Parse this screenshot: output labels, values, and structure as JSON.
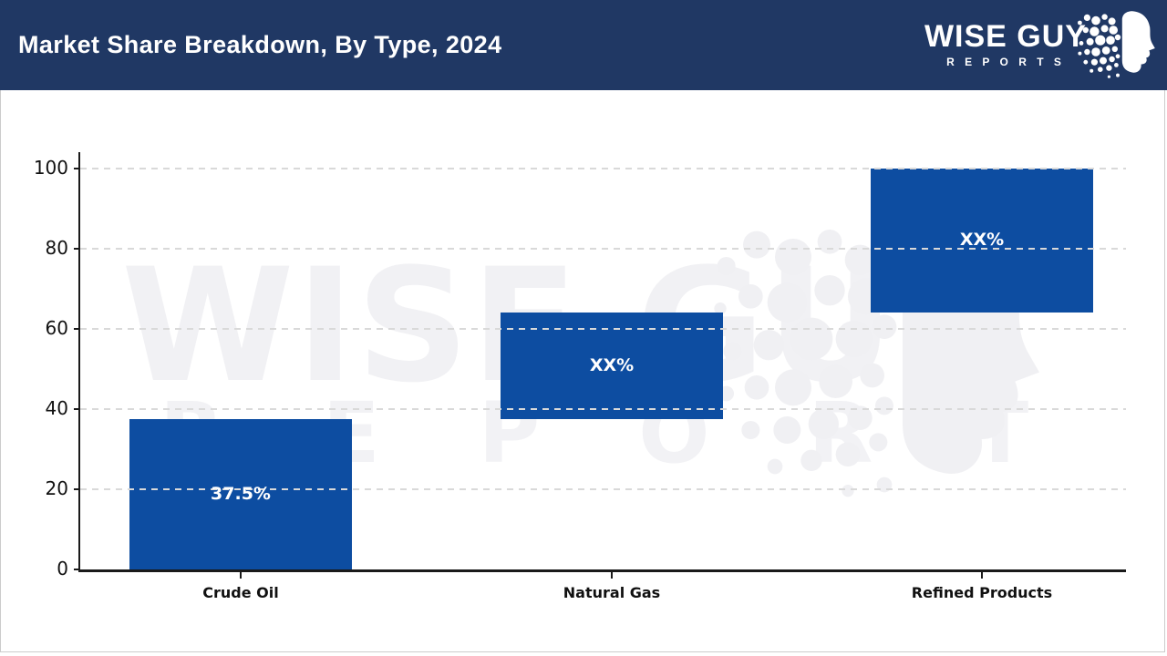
{
  "header": {
    "title": "Market Share Breakdown, By Type, 2024",
    "bg_color": "#203864",
    "logo_line1": "WISE GUY",
    "logo_line2": "R E P O R T S"
  },
  "watermark": {
    "line1": "WISE GUY",
    "line2": "R E P O R T S"
  },
  "chart_data": {
    "type": "bar",
    "subtype": "floating-segment waterfall of market share",
    "title": "Market Share Breakdown, By Type, 2024",
    "categories": [
      "Crude Oil",
      "Natural Gas",
      "Refined Products"
    ],
    "bars": [
      {
        "category": "Crude Oil",
        "start": 0,
        "end": 37.5,
        "label": "37.5%"
      },
      {
        "category": "Natural Gas",
        "start": 37.5,
        "end": 64,
        "label": "XX%"
      },
      {
        "category": "Refined Products",
        "start": 64,
        "end": 100,
        "label": "XX%"
      }
    ],
    "ylim": [
      0,
      104
    ],
    "yticks": [
      0,
      20,
      40,
      60,
      80,
      100
    ],
    "xlabel": "",
    "ylabel": "",
    "grid": "horizontal dashed",
    "legend": "none",
    "bar_color": "#0d4da1",
    "bar_label_color": "#ffffff",
    "axis_color": "#1a1a1a",
    "gridline_color": "#d9d9d9"
  }
}
